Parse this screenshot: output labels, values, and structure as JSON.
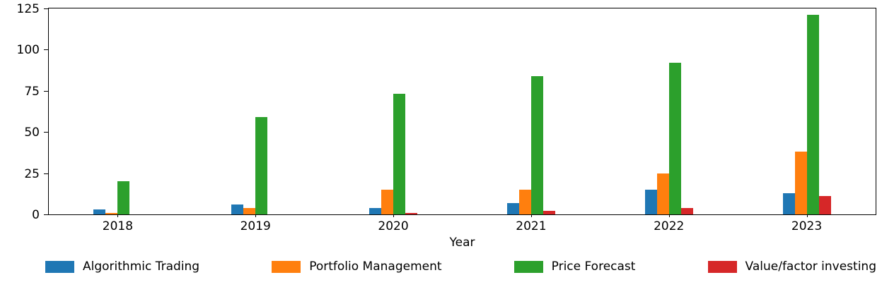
{
  "chart_data": {
    "type": "bar",
    "title": "",
    "xlabel": "Year",
    "ylabel": "",
    "categories": [
      "2018",
      "2019",
      "2020",
      "2021",
      "2022",
      "2023"
    ],
    "series": [
      {
        "name": "Algorithmic Trading",
        "color": "#1f77b4",
        "values": [
          3,
          6,
          4,
          7,
          15,
          13
        ]
      },
      {
        "name": "Portfolio Management",
        "color": "#ff7f0e",
        "values": [
          1,
          4,
          15,
          15,
          25,
          38
        ]
      },
      {
        "name": "Price Forecast",
        "color": "#2ca02c",
        "values": [
          20,
          59,
          73,
          84,
          92,
          121
        ]
      },
      {
        "name": "Value/factor investing",
        "color": "#d62728",
        "values": [
          0,
          0,
          1,
          2,
          4,
          11
        ]
      }
    ],
    "ylim": [
      0,
      125
    ],
    "yticks": [
      0,
      25,
      50,
      75,
      100,
      125
    ],
    "grid": false,
    "legend_position": "bottom"
  }
}
